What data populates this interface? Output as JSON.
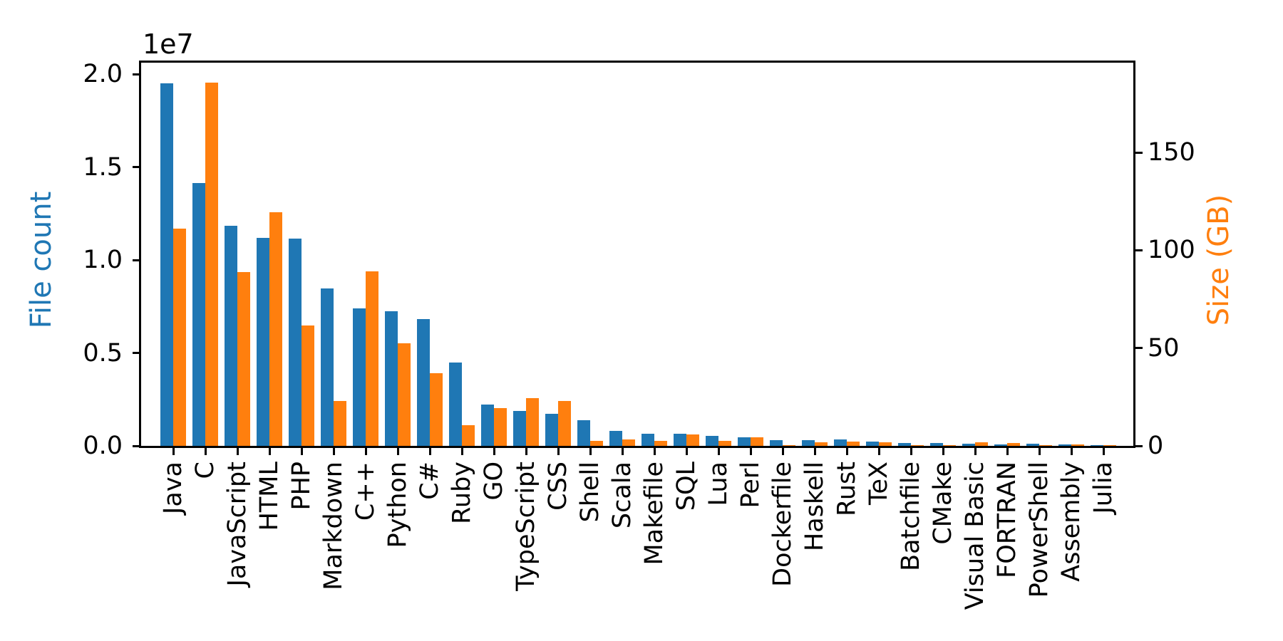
{
  "chart_data": {
    "type": "bar",
    "title": "",
    "categories": [
      "Java",
      "C",
      "JavaScript",
      "HTML",
      "PHP",
      "Markdown",
      "C++",
      "Python",
      "C#",
      "Ruby",
      "GO",
      "TypeScript",
      "CSS",
      "Shell",
      "Scala",
      "Makefile",
      "SQL",
      "Lua",
      "Perl",
      "Dockerfile",
      "Haskell",
      "Rust",
      "TeX",
      "Batchfile",
      "CMake",
      "Visual Basic",
      "FORTRAN",
      "PowerShell",
      "Assembly",
      "Julia"
    ],
    "series": [
      {
        "name": "File count",
        "axis": "left",
        "color": "#1f77b4",
        "unit": "files (millions)",
        "values_millions": [
          19.5,
          14.15,
          11.84,
          11.17,
          11.15,
          8.46,
          7.38,
          7.25,
          6.81,
          4.47,
          2.23,
          1.89,
          1.72,
          1.37,
          0.79,
          0.66,
          0.66,
          0.55,
          0.47,
          0.32,
          0.31,
          0.34,
          0.23,
          0.16,
          0.14,
          0.1,
          0.08,
          0.11,
          0.06,
          0.03
        ]
      },
      {
        "name": "Size (GB)",
        "axis": "right",
        "color": "#ff7f0e",
        "unit": "GB",
        "values_gb": [
          111,
          185.5,
          89,
          119.5,
          61.4,
          23.0,
          89.3,
          52.4,
          37.0,
          10.5,
          19.4,
          24.5,
          23.1,
          2.6,
          3.4,
          2.6,
          5.8,
          2.5,
          4.5,
          0.5,
          2.0,
          2.3,
          1.8,
          0.3,
          0.25,
          1.7,
          1.6,
          0.5,
          0.6,
          0.3
        ]
      }
    ],
    "left_axis": {
      "label": "File count",
      "color": "#1f77b4",
      "offset_text": "1e7",
      "tick_labels": [
        "0.0",
        "0.5",
        "1.0",
        "1.5",
        "2.0"
      ],
      "tick_values": [
        0,
        5000000,
        10000000,
        15000000,
        20000000
      ],
      "lim": [
        0,
        20600000
      ]
    },
    "right_axis": {
      "label": "Size (GB)",
      "color": "#ff7f0e",
      "tick_labels": [
        "0",
        "50",
        "100",
        "150"
      ],
      "tick_values": [
        0,
        50,
        100,
        150
      ],
      "lim": [
        0,
        196
      ]
    },
    "x_axis": {
      "label": "",
      "tick_label_rotation_deg": 90
    },
    "grid": false,
    "legend_position": "none",
    "background_color": "#ffffff",
    "spine_color": "#000000"
  }
}
